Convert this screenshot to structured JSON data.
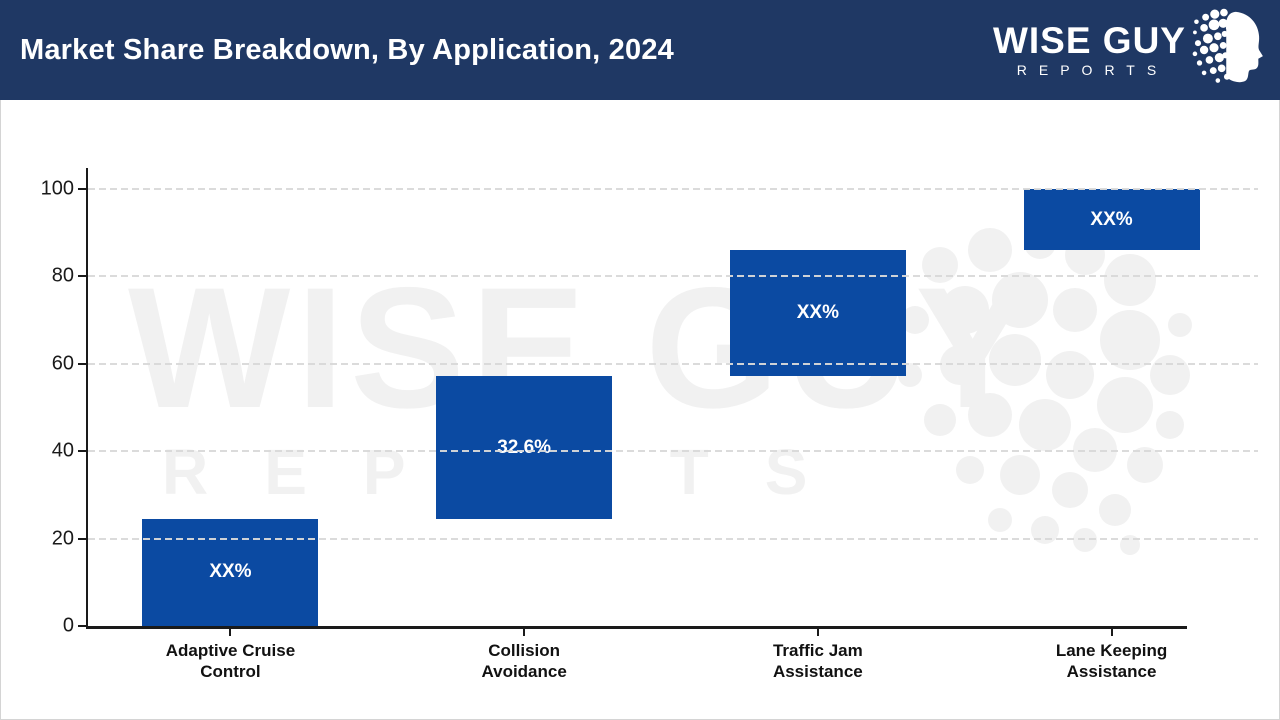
{
  "header": {
    "title": "Market Share Breakdown, By Application, 2024",
    "bg_color": "#1f3864",
    "logo": {
      "line1": "WISE GUY",
      "line2": "REPORTS"
    }
  },
  "watermark": {
    "line1": "WISE GUY",
    "line2": "REPORTS"
  },
  "chart_data": {
    "type": "bar",
    "subtype": "waterfall",
    "title": "Market Share Breakdown, By Application, 2024",
    "categories": [
      "Adaptive Cruise\nControl",
      "Collision\nAvoidance",
      "Traffic Jam\nAssistance",
      "Lane Keeping\nAssistance"
    ],
    "segments": [
      {
        "category": "Adaptive Cruise Control",
        "start": 0,
        "end": 24.5,
        "label": "XX%"
      },
      {
        "category": "Collision Avoidance",
        "start": 24.5,
        "end": 57.1,
        "label": "32.6%",
        "value": 32.6
      },
      {
        "category": "Traffic Jam Assistance",
        "start": 57.1,
        "end": 86,
        "label": "XX%"
      },
      {
        "category": "Lane Keeping Assistance",
        "start": 86,
        "end": 100,
        "label": "XX%"
      }
    ],
    "xlabel": "",
    "ylabel": "",
    "ylim": [
      0,
      100
    ],
    "yticks": [
      0,
      20,
      40,
      60,
      80,
      100
    ],
    "grid": "horizontal-dashed",
    "legend": "none",
    "bar_color": "#0b4aa2",
    "grid_color": "#d9d9d9",
    "axis_color": "#1a1a1a"
  }
}
